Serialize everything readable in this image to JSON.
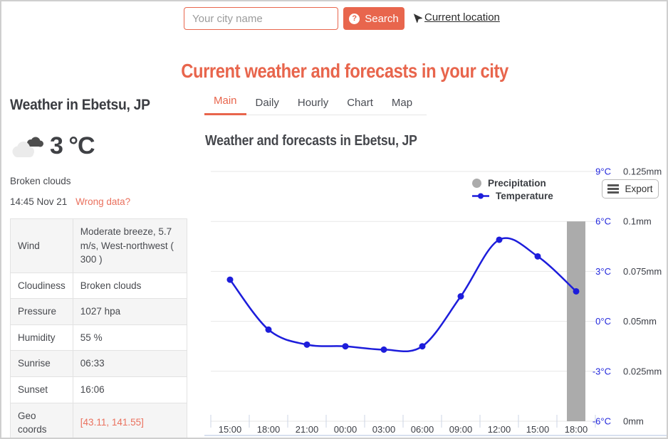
{
  "search": {
    "placeholder": "Your city name",
    "button_label": "Search",
    "help_glyph": "?",
    "current_location_label": "Current location"
  },
  "page_title": "Current weather and forecasts in your city",
  "tabs": [
    {
      "label": "Main",
      "active": true
    },
    {
      "label": "Daily",
      "active": false
    },
    {
      "label": "Hourly",
      "active": false
    },
    {
      "label": "Chart",
      "active": false
    },
    {
      "label": "Map",
      "active": false
    }
  ],
  "current": {
    "heading": "Weather in Ebetsu, JP",
    "temperature": "3 °C",
    "description": "Broken clouds",
    "datetime": "14:45 Nov 21",
    "wrong_data_label": "Wrong data?",
    "details": [
      {
        "label": "Wind",
        "value": "Moderate breeze, 5.7 m/s, West-northwest ( 300 )",
        "link": false
      },
      {
        "label": "Cloudiness",
        "value": "Broken clouds",
        "link": false
      },
      {
        "label": "Pressure",
        "value": "1027 hpa",
        "link": false
      },
      {
        "label": "Humidity",
        "value": "55 %",
        "link": false
      },
      {
        "label": "Sunrise",
        "value": "06:33",
        "link": false
      },
      {
        "label": "Sunset",
        "value": "16:06",
        "link": false
      },
      {
        "label": "Geo coords",
        "value": "[43.11, 141.55]",
        "link": true
      }
    ]
  },
  "chart": {
    "title": "Weather and forecasts in Ebetsu, JP",
    "export_label": "Export",
    "legend": [
      {
        "label": "Precipitation",
        "color": "#ababab"
      },
      {
        "label": "Temperature",
        "color": "#1d1ddb"
      }
    ],
    "colors": {
      "grid": "#e7e7e7",
      "tick": "#ccd6e6",
      "bottom_line": "#ccd5ea",
      "temp_axis_text": "#2126dc",
      "axis_text": "#3b3e46",
      "line": "#1d1ddb",
      "bar": "#ababab"
    }
  },
  "chart_data": {
    "type": "line",
    "x": [
      "15:00",
      "18:00",
      "21:00",
      "00:00",
      "03:00",
      "06:00",
      "09:00",
      "12:00",
      "15:00",
      "18:00"
    ],
    "series": [
      {
        "name": "Temperature",
        "type": "line",
        "unit": "°C",
        "values": [
          2.5,
          -0.5,
          -1.4,
          -1.5,
          -1.7,
          -1.5,
          1.5,
          4.9,
          3.9,
          1.8
        ]
      },
      {
        "name": "Precipitation",
        "type": "bar",
        "unit": "mm",
        "values": [
          0,
          0,
          0,
          0,
          0,
          0,
          0,
          0,
          0,
          0.1
        ]
      }
    ],
    "temp_axis": {
      "min": -6,
      "max": 9,
      "tick_values": [
        9,
        6,
        3,
        0,
        -3,
        -6
      ],
      "tick_labels": [
        "9°C",
        "6°C",
        "3°C",
        "0°C",
        "-3°C",
        "-6°C"
      ]
    },
    "precip_axis": {
      "min": 0,
      "max": 0.125,
      "tick_labels": [
        "0.125mm",
        "0.1mm",
        "0.075mm",
        "0.05mm",
        "0.025mm",
        "0mm"
      ]
    },
    "legend_position": "top-right",
    "grid": true
  }
}
